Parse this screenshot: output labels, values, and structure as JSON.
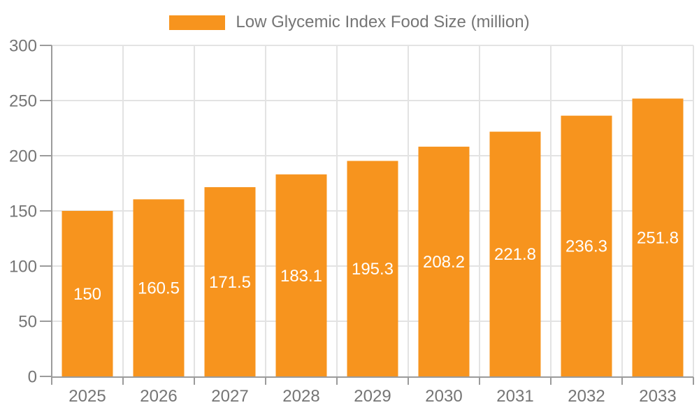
{
  "legend": {
    "label": "Low Glycemic Index Food Size (million)"
  },
  "colors": {
    "bar": "#f7941e",
    "axis": "#9b9b9b",
    "grid": "#e3e3e3",
    "tick_label": "#757575",
    "data_label": "#ffffff",
    "background": "#ffffff"
  },
  "chart_data": {
    "type": "bar",
    "title": "Low Glycemic Index Food Size (million)",
    "categories": [
      "2025",
      "2026",
      "2027",
      "2028",
      "2029",
      "2030",
      "2031",
      "2032",
      "2033"
    ],
    "values": [
      150,
      160.5,
      171.5,
      183.1,
      195.3,
      208.2,
      221.8,
      236.3,
      251.8
    ],
    "data_labels": [
      "150",
      "160.5",
      "171.5",
      "183.1",
      "195.3",
      "208.2",
      "221.8",
      "236.3",
      "251.8"
    ],
    "xlabel": "",
    "ylabel": "",
    "ylim": [
      0,
      300
    ],
    "yticks": [
      0,
      50,
      100,
      150,
      200,
      250,
      300
    ],
    "grid": true,
    "legend_position": "top"
  }
}
